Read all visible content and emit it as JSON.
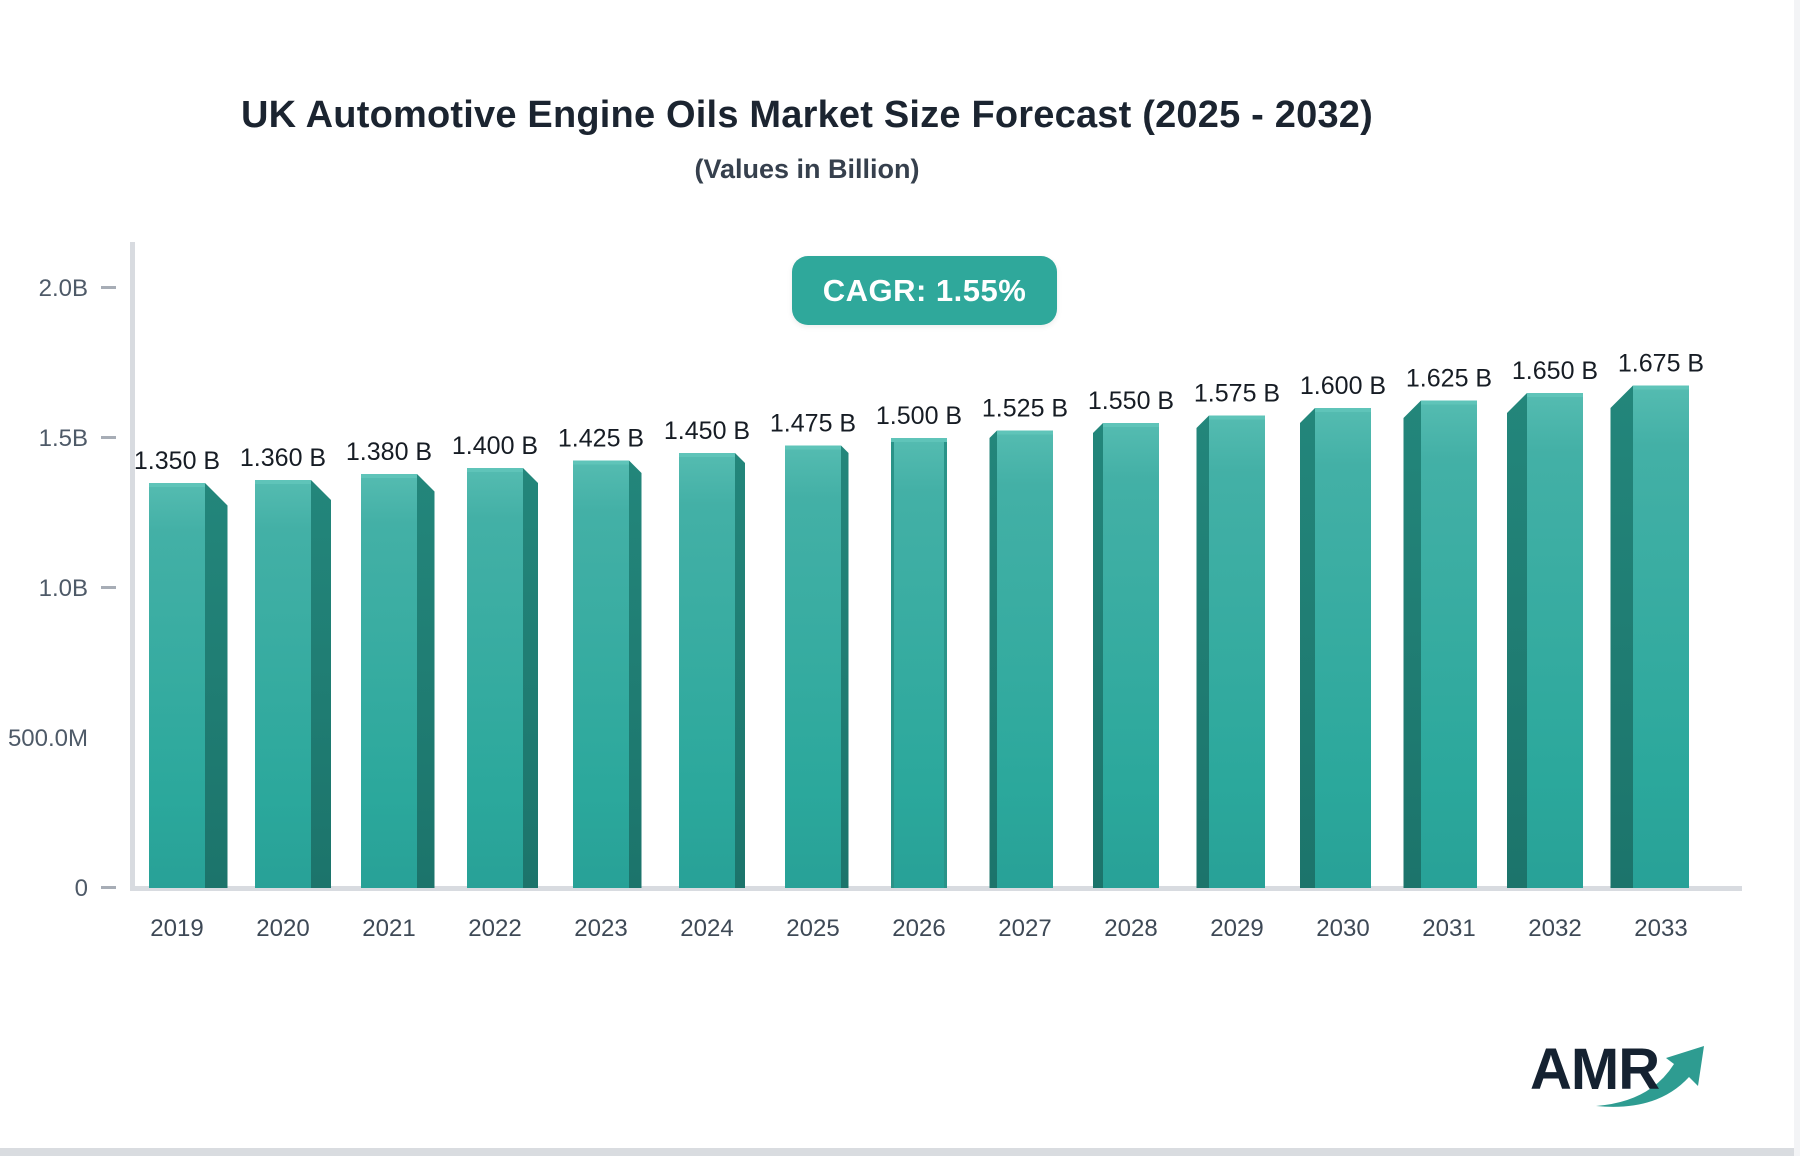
{
  "page": {
    "title": "UK Automotive Engine Oils Market Size Forecast (2025 - 2032)",
    "subtitle": "(Values in Billion)",
    "cagr_badge": "CAGR: 1.55%",
    "logo_text": "AMR"
  },
  "colors": {
    "accent_teal": "#2fa89b",
    "bar_front_top": "#55bcb1",
    "bar_front_bottom": "#28a197",
    "bar_side_dark": "#1e7d73",
    "bar_top_highlight": "#5fc4b9",
    "axis_line": "#d8dbe0",
    "tick_dash": "#a7adb6",
    "tick_label": "#4e5a68",
    "year_label": "#3e4956",
    "value_label": "#161c24",
    "title_text": "#1b2430",
    "logo_navy": "#152231",
    "logo_arrow_teal": "#2e9c91"
  },
  "chart_data": {
    "type": "bar",
    "title": "UK Automotive Engine Oils Market Size Forecast (2025 - 2032)",
    "subtitle": "(Values in Billion)",
    "annotation": "CAGR: 1.55%",
    "xlabel": "",
    "ylabel": "",
    "unit": "Billion",
    "grid": false,
    "legend": "none",
    "ylim": [
      0,
      2.0
    ],
    "categories": [
      "2019",
      "2020",
      "2021",
      "2022",
      "2023",
      "2024",
      "2025",
      "2026",
      "2027",
      "2028",
      "2029",
      "2030",
      "2031",
      "2032",
      "2033"
    ],
    "values": [
      1.35,
      1.36,
      1.38,
      1.4,
      1.425,
      1.45,
      1.475,
      1.5,
      1.525,
      1.55,
      1.575,
      1.6,
      1.625,
      1.65,
      1.675
    ],
    "value_labels": [
      "1.350 B",
      "1.360 B",
      "1.380 B",
      "1.400 B",
      "1.425 B",
      "1.450 B",
      "1.475 B",
      "1.500 B",
      "1.525 B",
      "1.550 B",
      "1.575 B",
      "1.600 B",
      "1.625 B",
      "1.650 B",
      "1.675 B"
    ],
    "y_ticks": [
      {
        "label": "2.0B",
        "value": 2.0,
        "dash": true
      },
      {
        "label": "1.5B",
        "value": 1.5,
        "dash": true
      },
      {
        "label": "1.0B",
        "value": 1.0,
        "dash": true
      },
      {
        "label": "500.0M",
        "value": 0.5,
        "dash": false
      },
      {
        "label": "0",
        "value": 0.0,
        "dash": true
      }
    ]
  }
}
